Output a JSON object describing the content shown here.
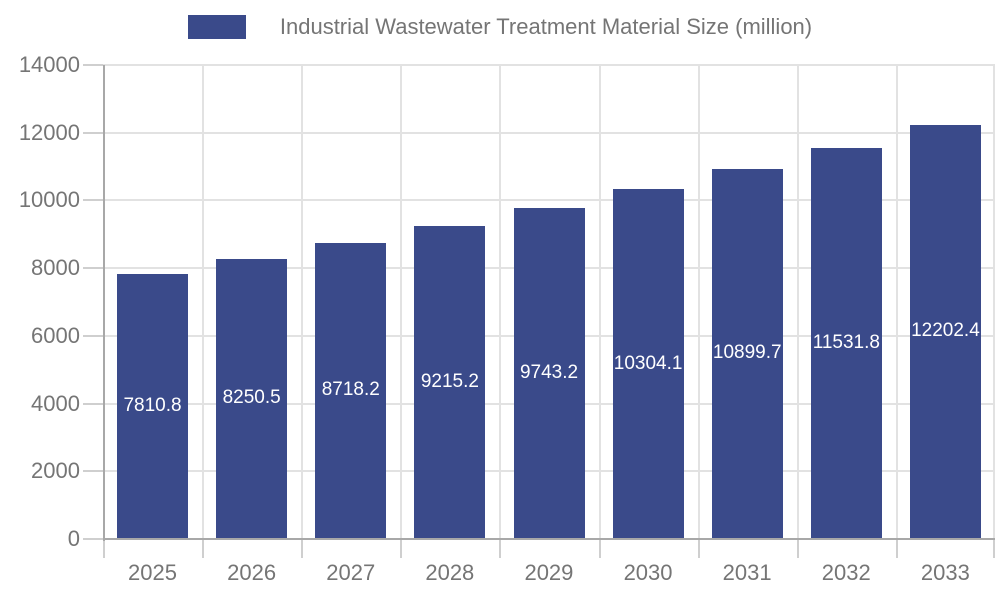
{
  "legend": {
    "label": "Industrial Wastewater Treatment Material Size (million)"
  },
  "chart_data": {
    "type": "bar",
    "title": "Industrial Wastewater Treatment Material Size (million)",
    "categories": [
      "2025",
      "2026",
      "2027",
      "2028",
      "2029",
      "2030",
      "2031",
      "2032",
      "2033"
    ],
    "values": [
      7810.8,
      8250.5,
      8718.2,
      9215.2,
      9743.2,
      10304.1,
      10899.7,
      11531.8,
      12202.4
    ],
    "value_labels": [
      "7810.8",
      "8250.5",
      "8718.2",
      "9215.2",
      "9743.2",
      "10304.1",
      "10899.7",
      "11531.8",
      "12202.4"
    ],
    "xlabel": "",
    "ylabel": "",
    "ylim": [
      0,
      14000
    ],
    "yticks": [
      0,
      2000,
      4000,
      6000,
      8000,
      10000,
      12000,
      14000
    ],
    "grid": true,
    "legend_position": "top-center",
    "series_name": "Industrial Wastewater Treatment Material Size (million)"
  },
  "colors": {
    "bar": "#3A4A8A",
    "grid": "#E2E2E2",
    "axis": "#A8A8A8",
    "tick": "#CFCFCF",
    "axis_text": "#757575",
    "legend_text": "#757575",
    "bar_label_text": "#FFFFFF",
    "background": "#FFFFFF"
  }
}
